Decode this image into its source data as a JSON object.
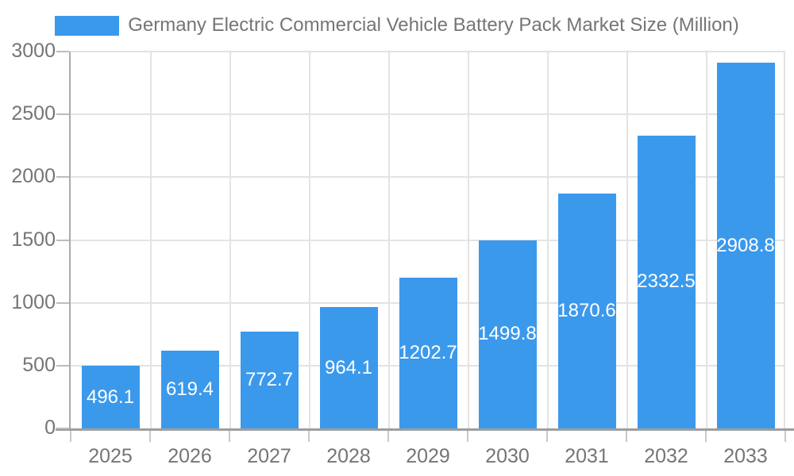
{
  "chart_data": {
    "type": "bar",
    "title": "Germany Electric Commercial Vehicle Battery Pack Market Size (Million)",
    "categories": [
      "2025",
      "2026",
      "2027",
      "2028",
      "2029",
      "2030",
      "2031",
      "2032",
      "2033"
    ],
    "series": [
      {
        "name": "Germany Electric Commercial Vehicle Battery Pack Market Size (Million)",
        "values": [
          496.1,
          619.4,
          772.7,
          964.1,
          1202.7,
          1499.8,
          1870.6,
          2332.5,
          2908.8
        ]
      }
    ],
    "value_labels": [
      "496.1",
      "619.4",
      "772.7",
      "964.1",
      "1202.7",
      "1499.8",
      "1870.6",
      "2332.5",
      "2908.8"
    ],
    "xlabel": "",
    "ylabel": "",
    "ylim": [
      0,
      3000
    ],
    "yticks": [
      0,
      500,
      1000,
      1500,
      2000,
      2500,
      3000
    ],
    "grid": true,
    "legend_position": "top-center",
    "colors": {
      "bar": "#3b99ec",
      "value_label_text": "#ffffff",
      "title_text": "#757575",
      "axis_text": "#757575",
      "gridline": "#e3e3e3",
      "y_axis_line": "#ababab",
      "x_axis_line": "#9e9e9e",
      "tick_mark": "#bdbdbd",
      "background": "#ffffff"
    }
  }
}
